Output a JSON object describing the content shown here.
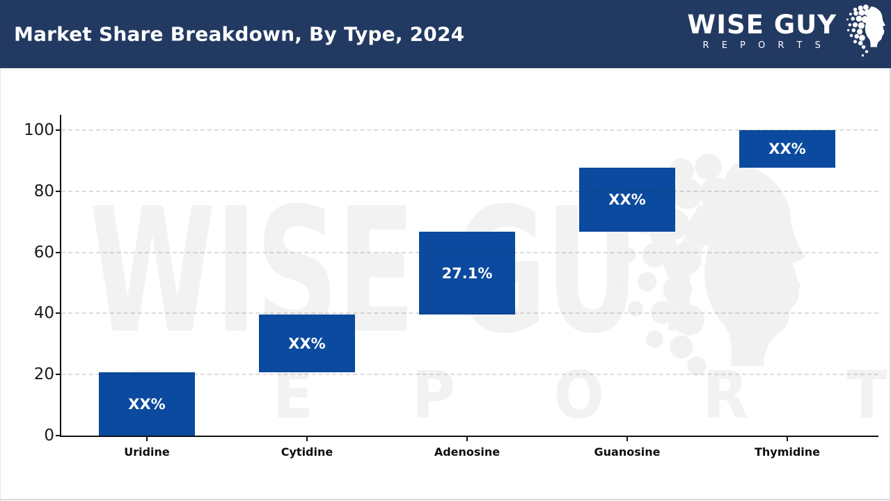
{
  "header": {
    "title": "Market Share Breakdown, By Type, 2024",
    "logo": {
      "line1": "WISE GUY",
      "line2": "R E P O R T S"
    }
  },
  "watermark": {
    "line1": "WISE GUY",
    "line2": "R E P O R T S"
  },
  "chart_data": {
    "type": "bar",
    "subtype": "waterfall",
    "title": "Market Share Breakdown, By Type, 2024",
    "categories": [
      "Uridine",
      "Cytidine",
      "Adenosine",
      "Guanosine",
      "Thymidine"
    ],
    "bars": [
      {
        "category": "Uridine",
        "start": 0,
        "end": 20.7,
        "label": "XX%"
      },
      {
        "category": "Cytidine",
        "start": 20.7,
        "end": 39.6,
        "label": "XX%"
      },
      {
        "category": "Adenosine",
        "start": 39.6,
        "end": 66.7,
        "label": "27.1%",
        "value": 27.1
      },
      {
        "category": "Guanosine",
        "start": 66.7,
        "end": 87.7,
        "label": "XX%"
      },
      {
        "category": "Thymidine",
        "start": 87.7,
        "end": 100.0,
        "label": "XX%"
      }
    ],
    "yticks": [
      0,
      20,
      40,
      60,
      80,
      100
    ],
    "ylim": [
      0,
      105
    ],
    "xlabel": "",
    "ylabel": "",
    "legend": "none",
    "grid": "horizontal-dashed",
    "colors": {
      "bar": "#0b4a9e",
      "bar_label": "#ffffff",
      "header_bg": "#223962",
      "axis": "#111111",
      "grid_on_white": "#d6d6d6",
      "watermark": "#f2f2f2"
    }
  }
}
